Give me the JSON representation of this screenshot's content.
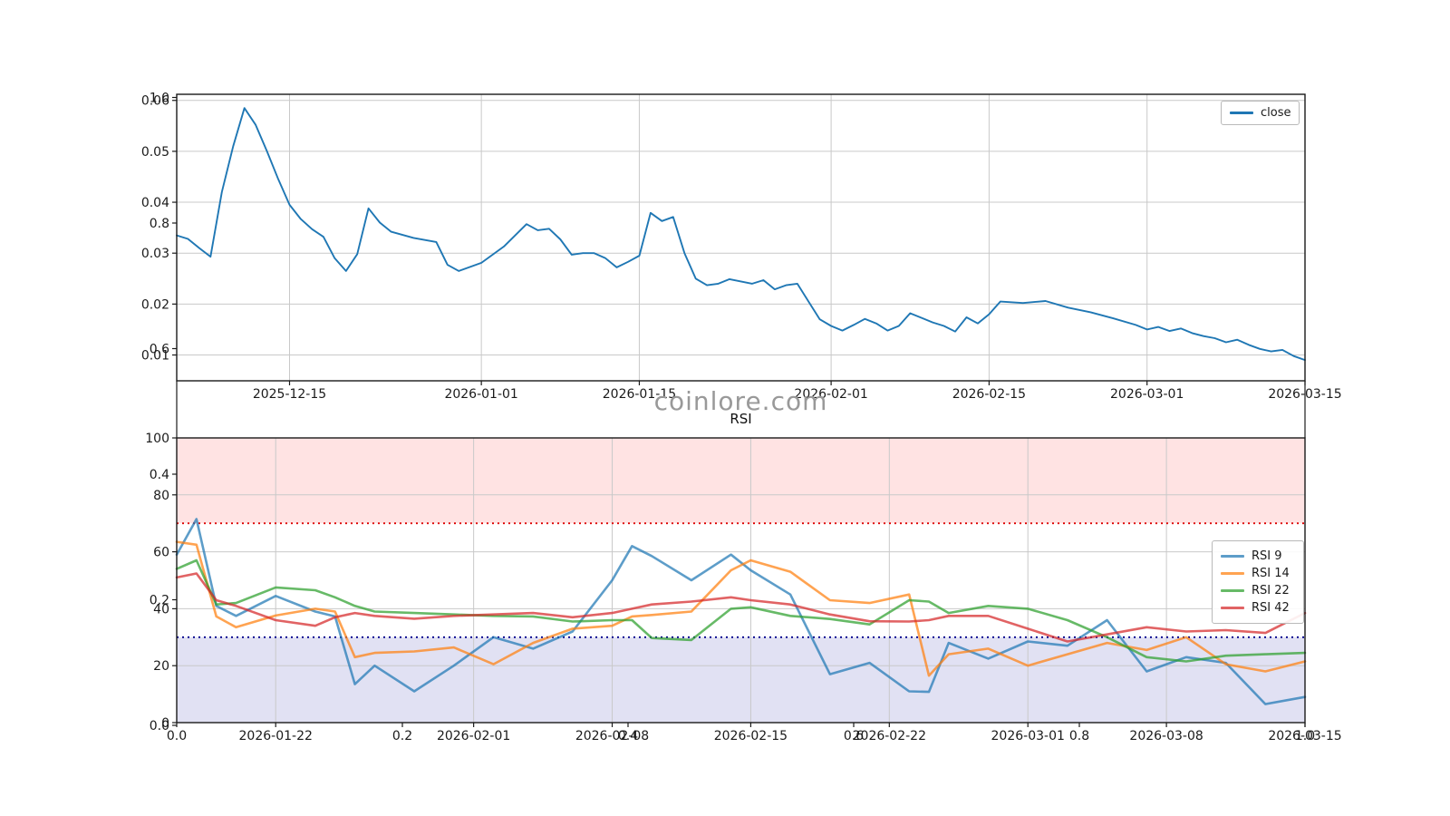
{
  "watermark": "coinlore.com",
  "overlay_axis": {
    "x_tick_labels": [
      "0.0",
      "0.2",
      "0.4",
      "0.6",
      "0.8",
      "1.0"
    ],
    "y_tick_labels": [
      "0.0",
      "0.2",
      "0.4",
      "0.6",
      "0.8",
      "1.0"
    ]
  },
  "style": {
    "grid_color": "#c9c9c9",
    "spine_color": "#1a1a1a",
    "tick_label_color": "#1a1a1a"
  },
  "chart_data": [
    {
      "type": "line",
      "title": "",
      "legend_position": "upper right",
      "grid": true,
      "xlim": [
        "2025-12-05",
        "2026-03-15"
      ],
      "ylim": [
        0.00493,
        0.0612
      ],
      "x_tick_labels": [
        "2025-12-15",
        "2026-01-01",
        "2026-01-15",
        "2026-02-01",
        "2026-02-15",
        "2026-03-01",
        "2026-03-15"
      ],
      "y_tick_values": [
        0.01,
        0.02,
        0.03,
        0.04,
        0.05,
        0.06
      ],
      "y_tick_labels": [
        "0.01",
        "0.02",
        "0.03",
        "0.04",
        "0.05",
        "0.06"
      ],
      "series": [
        {
          "name": "close",
          "color": "#1f77b4",
          "points": [
            [
              "2025-12-05",
              0.0335
            ],
            [
              "2025-12-06",
              0.0328
            ],
            [
              "2025-12-07",
              0.031
            ],
            [
              "2025-12-08",
              0.0293
            ],
            [
              "2025-12-09",
              0.042
            ],
            [
              "2025-12-10",
              0.051
            ],
            [
              "2025-12-11",
              0.0585
            ],
            [
              "2025-12-12",
              0.0552
            ],
            [
              "2025-12-13",
              0.05
            ],
            [
              "2025-12-14",
              0.0445
            ],
            [
              "2025-12-15",
              0.0395
            ],
            [
              "2025-12-16",
              0.0367
            ],
            [
              "2025-12-17",
              0.0347
            ],
            [
              "2025-12-18",
              0.0332
            ],
            [
              "2025-12-19",
              0.029
            ],
            [
              "2025-12-20",
              0.0265
            ],
            [
              "2025-12-21",
              0.0298
            ],
            [
              "2025-12-22",
              0.0388
            ],
            [
              "2025-12-23",
              0.036
            ],
            [
              "2025-12-24",
              0.0342
            ],
            [
              "2025-12-26",
              0.033
            ],
            [
              "2025-12-28",
              0.0322
            ],
            [
              "2025-12-29",
              0.0277
            ],
            [
              "2025-12-30",
              0.0265
            ],
            [
              "2026-01-01",
              0.0281
            ],
            [
              "2026-01-03",
              0.0313
            ],
            [
              "2026-01-05",
              0.0357
            ],
            [
              "2026-01-06",
              0.0345
            ],
            [
              "2026-01-07",
              0.0348
            ],
            [
              "2026-01-08",
              0.0327
            ],
            [
              "2026-01-09",
              0.0297
            ],
            [
              "2026-01-10",
              0.03
            ],
            [
              "2026-01-11",
              0.03
            ],
            [
              "2026-01-12",
              0.029
            ],
            [
              "2026-01-13",
              0.0272
            ],
            [
              "2026-01-14",
              0.0283
            ],
            [
              "2026-01-15",
              0.0295
            ],
            [
              "2026-01-16",
              0.0379
            ],
            [
              "2026-01-17",
              0.0363
            ],
            [
              "2026-01-18",
              0.0371
            ],
            [
              "2026-01-19",
              0.03
            ],
            [
              "2026-01-20",
              0.025
            ],
            [
              "2026-01-21",
              0.0237
            ],
            [
              "2026-01-22",
              0.024
            ],
            [
              "2026-01-23",
              0.0249
            ],
            [
              "2026-01-25",
              0.024
            ],
            [
              "2026-01-26",
              0.0247
            ],
            [
              "2026-01-27",
              0.0229
            ],
            [
              "2026-01-28",
              0.0237
            ],
            [
              "2026-01-29",
              0.024
            ],
            [
              "2026-01-30",
              0.0205
            ],
            [
              "2026-01-31",
              0.017
            ],
            [
              "2026-02-01",
              0.0157
            ],
            [
              "2026-02-02",
              0.0148
            ],
            [
              "2026-02-03",
              0.0159
            ],
            [
              "2026-02-04",
              0.0171
            ],
            [
              "2026-02-05",
              0.0162
            ],
            [
              "2026-02-06",
              0.0148
            ],
            [
              "2026-02-07",
              0.0157
            ],
            [
              "2026-02-08",
              0.0182
            ],
            [
              "2026-02-09",
              0.0173
            ],
            [
              "2026-02-10",
              0.0164
            ],
            [
              "2026-02-11",
              0.0157
            ],
            [
              "2026-02-12",
              0.0146
            ],
            [
              "2026-02-13",
              0.0174
            ],
            [
              "2026-02-14",
              0.0162
            ],
            [
              "2026-02-15",
              0.018
            ],
            [
              "2026-02-16",
              0.0205
            ],
            [
              "2026-02-18",
              0.0202
            ],
            [
              "2026-02-20",
              0.0206
            ],
            [
              "2026-02-22",
              0.0193
            ],
            [
              "2026-02-24",
              0.0184
            ],
            [
              "2026-02-26",
              0.0172
            ],
            [
              "2026-02-28",
              0.0159
            ],
            [
              "2026-03-01",
              0.015
            ],
            [
              "2026-03-02",
              0.0155
            ],
            [
              "2026-03-03",
              0.0147
            ],
            [
              "2026-03-04",
              0.0152
            ],
            [
              "2026-03-05",
              0.0143
            ],
            [
              "2026-03-06",
              0.0137
            ],
            [
              "2026-03-07",
              0.0133
            ],
            [
              "2026-03-08",
              0.0125
            ],
            [
              "2026-03-09",
              0.013
            ],
            [
              "2026-03-10",
              0.012
            ],
            [
              "2026-03-11",
              0.0112
            ],
            [
              "2026-03-12",
              0.0107
            ],
            [
              "2026-03-13",
              0.011
            ],
            [
              "2026-03-14",
              0.0098
            ],
            [
              "2026-03-15",
              0.009
            ]
          ]
        }
      ]
    },
    {
      "type": "line",
      "title": "RSI",
      "legend_position": "right",
      "grid": true,
      "xlim": [
        "2026-01-17",
        "2026-03-15"
      ],
      "ylim": [
        0,
        100
      ],
      "x_tick_labels": [
        "2026-01-22",
        "2026-02-01",
        "2026-02-08",
        "2026-02-15",
        "2026-02-22",
        "2026-03-01",
        "2026-03-08",
        "2026-03-15"
      ],
      "y_tick_values": [
        0,
        20,
        40,
        60,
        80,
        100
      ],
      "y_tick_labels": [
        "0",
        "20",
        "40",
        "60",
        "80",
        "100"
      ],
      "bands": {
        "overbought": {
          "from": 70,
          "to": 100,
          "color": "rgba(255,40,40,0.13)"
        },
        "oversold": {
          "from": 0,
          "to": 30,
          "color": "rgba(20,20,160,0.13)"
        }
      },
      "thresholds": {
        "overbought": {
          "value": 70,
          "color": "#dd0000"
        },
        "oversold": {
          "value": 30,
          "color": "#00008b"
        }
      },
      "categories": [
        "2026-01-17",
        "2026-01-18",
        "2026-01-19",
        "2026-01-20",
        "2026-01-22",
        "2026-01-24",
        "2026-01-25",
        "2026-01-26",
        "2026-01-27",
        "2026-01-29",
        "2026-01-31",
        "2026-02-02",
        "2026-02-04",
        "2026-02-06",
        "2026-02-08",
        "2026-02-09",
        "2026-02-10",
        "2026-02-12",
        "2026-02-14",
        "2026-02-15",
        "2026-02-17",
        "2026-02-19",
        "2026-02-21",
        "2026-02-23",
        "2026-02-24",
        "2026-02-25",
        "2026-02-27",
        "2026-03-01",
        "2026-03-03",
        "2026-03-05",
        "2026-03-07",
        "2026-03-09",
        "2026-03-11",
        "2026-03-13",
        "2026-03-15"
      ],
      "series": [
        {
          "name": "RSI 9",
          "color": "rgba(31,119,180,0.72)",
          "values": [
            59,
            71.5,
            41,
            37.5,
            44.5,
            39,
            37.3,
            13.5,
            20,
            11,
            20,
            30,
            26,
            32,
            50,
            62,
            58.5,
            50,
            59,
            53.5,
            45,
            17,
            21,
            11,
            10.8,
            28,
            22.5,
            28.5,
            27,
            36,
            18,
            23,
            21,
            6.5,
            9
          ]
        },
        {
          "name": "RSI 14",
          "color": "rgba(255,127,14,0.72)",
          "values": [
            63.5,
            62.5,
            37.3,
            33.5,
            37.6,
            40,
            39,
            23,
            24.5,
            25,
            26.4,
            20.5,
            28,
            33,
            34,
            37.3,
            37.8,
            39,
            53.5,
            57,
            53,
            43,
            42,
            45,
            16.5,
            24,
            26,
            20,
            24,
            28,
            25.5,
            30,
            20.5,
            18,
            21.5
          ]
        },
        {
          "name": "RSI 22",
          "color": "rgba(44,160,44,0.72)",
          "values": [
            54,
            57,
            41.5,
            42,
            47.5,
            46.5,
            44,
            41,
            39,
            38.5,
            38,
            37.5,
            37.3,
            35.5,
            36,
            36,
            29.7,
            29,
            40,
            40.5,
            37.5,
            36.4,
            34.5,
            43,
            42.5,
            38.5,
            41,
            40,
            36,
            30,
            23,
            21.5,
            23.5,
            24,
            24.5
          ]
        },
        {
          "name": "RSI 42",
          "color": "rgba(214,39,40,0.72)",
          "values": [
            51,
            52.4,
            43,
            41,
            36,
            34,
            37,
            38.5,
            37.5,
            36.5,
            37.5,
            38,
            38.5,
            37,
            38.5,
            40,
            41.5,
            42.5,
            44,
            43,
            41.5,
            38,
            35.6,
            35.5,
            36,
            37.5,
            37.5,
            33,
            28.5,
            31,
            33.5,
            32,
            32.5,
            31.5,
            38.5
          ]
        }
      ]
    }
  ]
}
